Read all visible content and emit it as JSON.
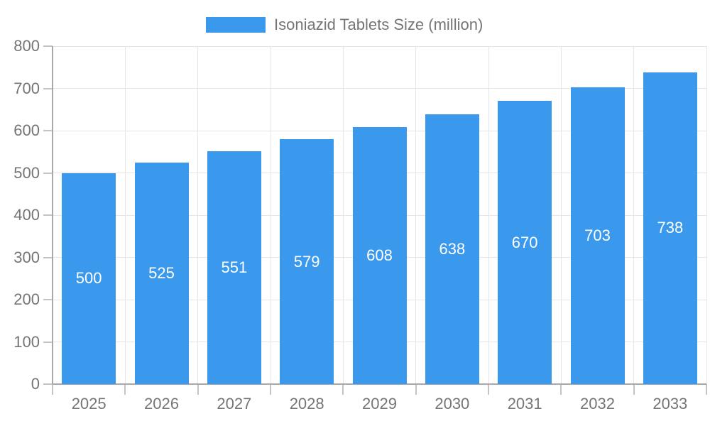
{
  "chart_data": {
    "type": "bar",
    "title": "",
    "legend": "Isoniazid Tablets Size (million)",
    "legend_position": "top-center",
    "categories": [
      "2025",
      "2026",
      "2027",
      "2028",
      "2029",
      "2030",
      "2031",
      "2032",
      "2033"
    ],
    "series": [
      {
        "name": "Isoniazid Tablets Size (million)",
        "values": [
          500,
          525,
          551,
          579,
          608,
          638,
          670,
          703,
          738
        ]
      }
    ],
    "value_labels_shown_inside_bars": true,
    "xlabel": "",
    "ylabel": "",
    "ylim": [
      0,
      800
    ],
    "yticks": [
      0,
      100,
      200,
      300,
      400,
      500,
      600,
      700,
      800
    ],
    "grid": true,
    "colors": {
      "bar": "#3A99EC",
      "grid": "#E6E6E6",
      "axis": "#A8A8A8",
      "tick": "#C4C4C4",
      "axis_text": "#757575",
      "legend_text": "#757575",
      "value_label": "#FFFFFF",
      "background": "#FFFFFF"
    }
  }
}
